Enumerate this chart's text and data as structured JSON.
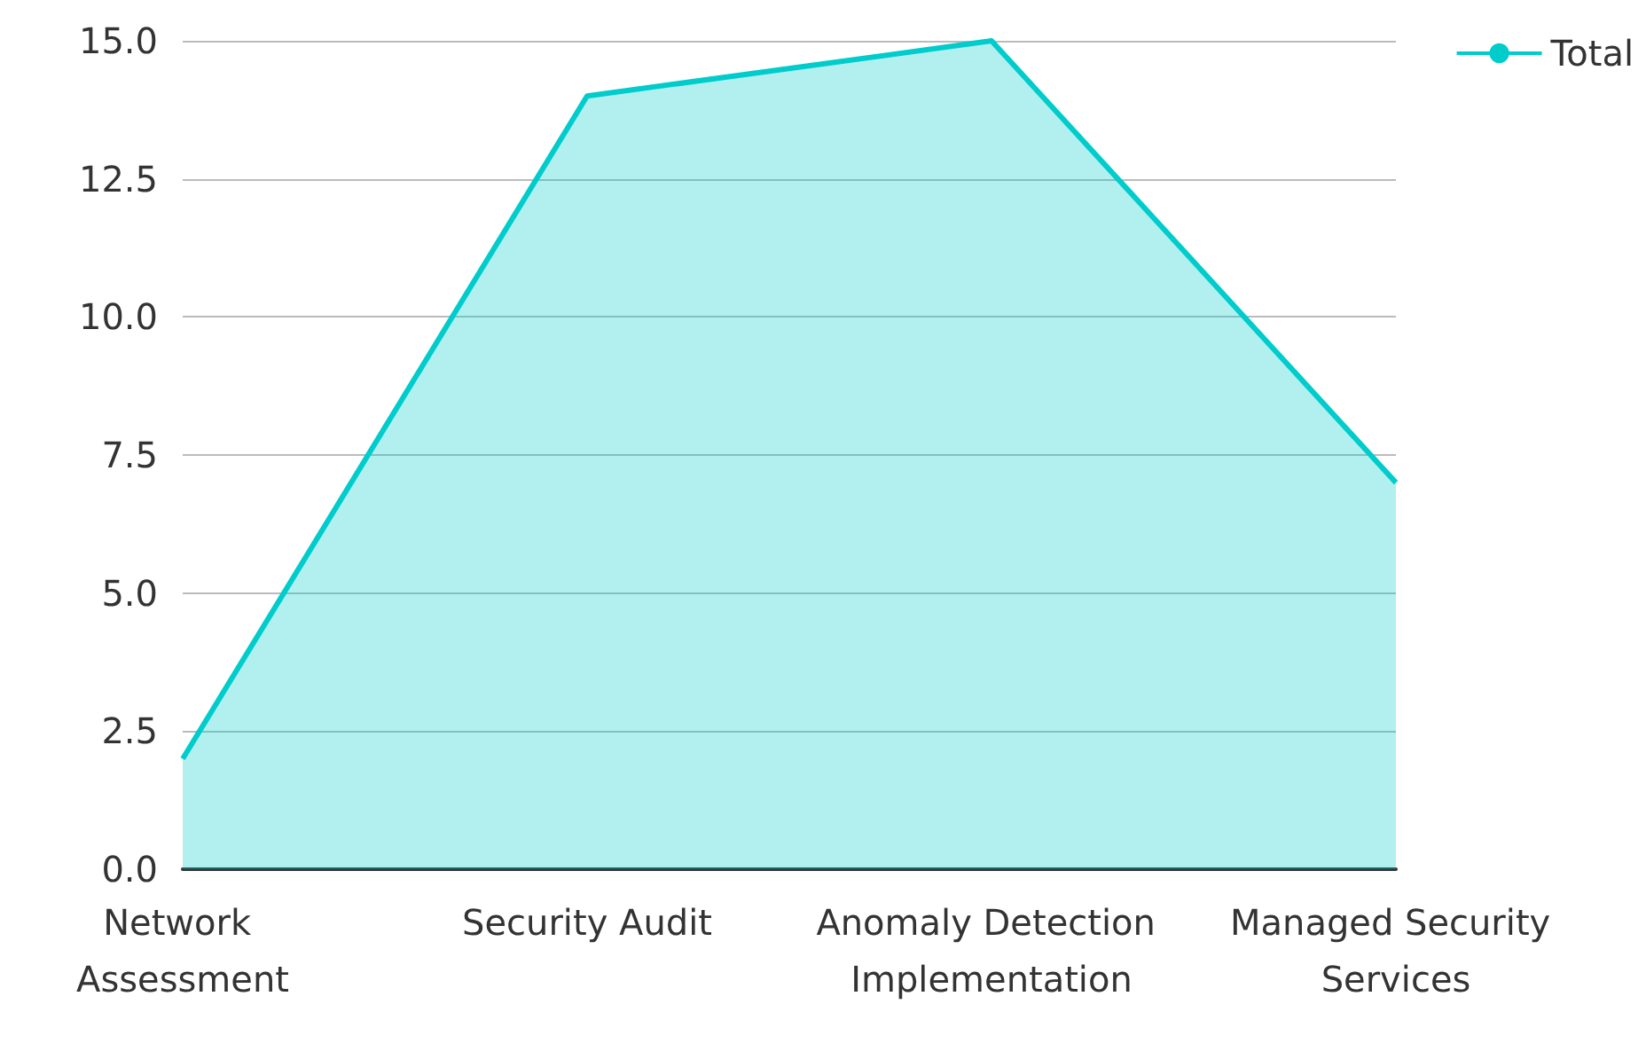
{
  "chart_data": {
    "type": "area",
    "categories": [
      "Network Assessment",
      "Security Audit",
      "Anomaly Detection Implementation",
      "Managed Security Services"
    ],
    "series": [
      {
        "name": "Total",
        "color": "#00cccc",
        "values": [
          2,
          14,
          15,
          7
        ]
      }
    ],
    "ylim": [
      0,
      15
    ],
    "yticks": [
      {
        "value": 0,
        "label": "0.0"
      },
      {
        "value": 2.5,
        "label": "2.5"
      },
      {
        "value": 5,
        "label": "5.0"
      },
      {
        "value": 7.5,
        "label": "7.5"
      },
      {
        "value": 10,
        "label": "10.0"
      },
      {
        "value": 12.5,
        "label": "12.5"
      },
      {
        "value": 15,
        "label": "15.0"
      }
    ],
    "grid": "y",
    "legend": "top right",
    "marker": "none"
  }
}
